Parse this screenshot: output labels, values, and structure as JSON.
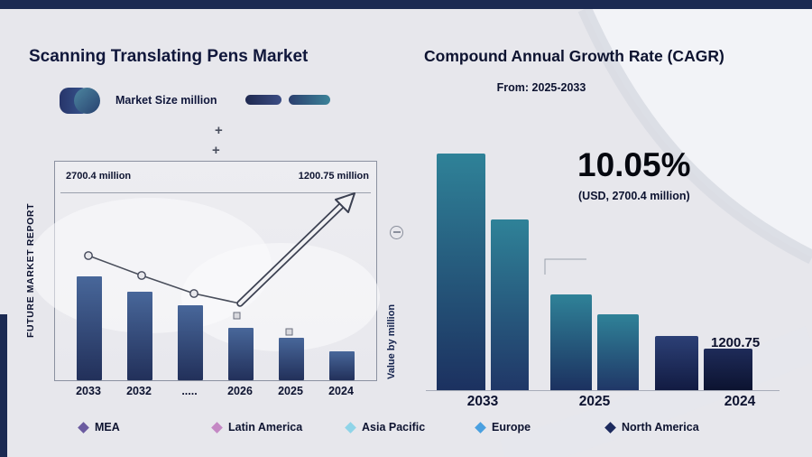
{
  "left": {
    "title": "Scanning Translating Pens Market",
    "legend_label": "Market Size million",
    "report_label": "FUTURE MARKET REPORT",
    "annotation_left": "2700.4 million",
    "annotation_right": "1200.75 million"
  },
  "right": {
    "title": "Compound Annual Growth Rate (CAGR)",
    "subtitle": "From: 2025-2033",
    "cagr_value": "10.05%",
    "cagr_sub": "(USD, 2700.4 million)",
    "value_axis_label": "Value by million",
    "value_annotation": "1200.75"
  },
  "deco": {
    "plus": "+"
  },
  "colors": {
    "accent_navy": "#1b2a52",
    "accent_teal": "#2f8298",
    "background": "#e7e7ec"
  },
  "legend": [
    {
      "label": "MEA",
      "color": "#6b5ba0"
    },
    {
      "label": "Latin America",
      "color": "#c488c4"
    },
    {
      "label": "Asia Pacific",
      "color": "#8fd4e8"
    },
    {
      "label": "Europe",
      "color": "#4aa0e0"
    },
    {
      "label": "North America",
      "color": "#1c2a5e"
    }
  ],
  "chart_data": [
    {
      "type": "bar",
      "title": "Scanning Translating Pens Market — Market Size million",
      "categories": [
        "2033",
        "2032",
        ".....",
        "2026",
        "2025",
        "2024"
      ],
      "annotations": [
        "2700.4 million",
        "1200.75 million"
      ],
      "value_2033": 2700.4,
      "value_2024": 1200.75,
      "bar_heights_rel": [
        1,
        0.85,
        0.72,
        0.5,
        0.41,
        0.28
      ],
      "bar_gradient": [
        "#48679a",
        "#22305a"
      ],
      "trend": {
        "type": "line-with-arrow",
        "description": "markers descending from 2033 to 2026, then outlined arrow rising to top right"
      },
      "legend_position": "top-left",
      "grid": "single top rule"
    },
    {
      "type": "bar",
      "title": "Compound Annual Growth Rate (CAGR)",
      "subtitle": "From: 2025-2033",
      "cagr": "10.05%",
      "cagr_basis": "(USD, 2700.4 million)",
      "categories": [
        "2033",
        "2025",
        "2024"
      ],
      "ylabel": "Value by million",
      "annotation": "1200.75",
      "value_2024": 1200.75,
      "series": [
        {
          "name": "bar-a",
          "heights_rel": [
            1,
            0.405,
            0.23
          ]
        },
        {
          "name": "bar-b",
          "heights_rel": [
            0.72,
            0.32,
            0.175
          ]
        }
      ],
      "group_gradients": [
        [
          [
            "#2f8298",
            "#1c3160"
          ],
          [
            "#2f8298",
            "#203767"
          ]
        ],
        [
          [
            "#2f8298",
            "#1c3160"
          ],
          [
            "#2f8298",
            "#203767"
          ]
        ],
        [
          [
            "#2c4076",
            "#121b42"
          ],
          [
            "#1e2b59",
            "#0c1330"
          ]
        ]
      ],
      "grid": "baseline only"
    }
  ]
}
